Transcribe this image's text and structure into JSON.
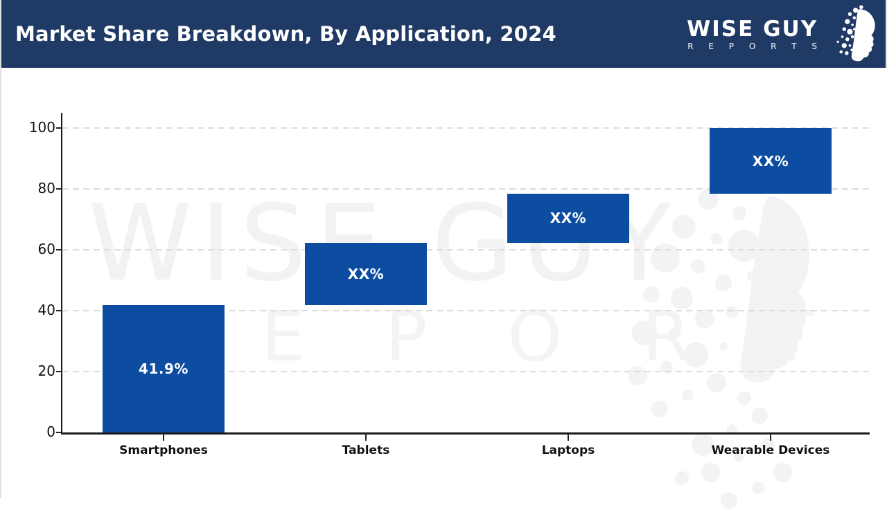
{
  "header": {
    "title": "Market Share Breakdown, By Application, 2024",
    "logo": {
      "line1": "WISE GUY",
      "line2": "R E P O R T S"
    }
  },
  "watermark": {
    "line1": "WISE GUY",
    "line2": "R E P O R T S"
  },
  "chart_data": {
    "type": "bar",
    "subtype": "waterfall",
    "title": "Market Share Breakdown, By Application, 2024",
    "categories": [
      "Smartphones",
      "Tablets",
      "Laptops",
      "Wearable Devices"
    ],
    "bars": [
      {
        "category": "Smartphones",
        "start": 0,
        "end": 41.9,
        "label": "41.9%"
      },
      {
        "category": "Tablets",
        "start": 41.9,
        "end": 62.3,
        "label": "XX%"
      },
      {
        "category": "Laptops",
        "start": 62.3,
        "end": 78.4,
        "label": "XX%"
      },
      {
        "category": "Wearable Devices",
        "start": 78.4,
        "end": 100,
        "label": "XX%"
      }
    ],
    "xlabel": "",
    "ylabel": "",
    "yticks": [
      0,
      20,
      40,
      60,
      80,
      100
    ],
    "ylim": [
      0,
      100
    ],
    "grid": true,
    "grid_style": "dashed",
    "legend": null,
    "bar_color": "#0D4DA1",
    "bar_label_color": "#ffffff"
  },
  "colors": {
    "header_bg": "#203A66",
    "bar": "#0D4DA1",
    "axis": "#1a1a1a",
    "grid": "#dcdcdc",
    "watermark": "#f2f2f4"
  }
}
